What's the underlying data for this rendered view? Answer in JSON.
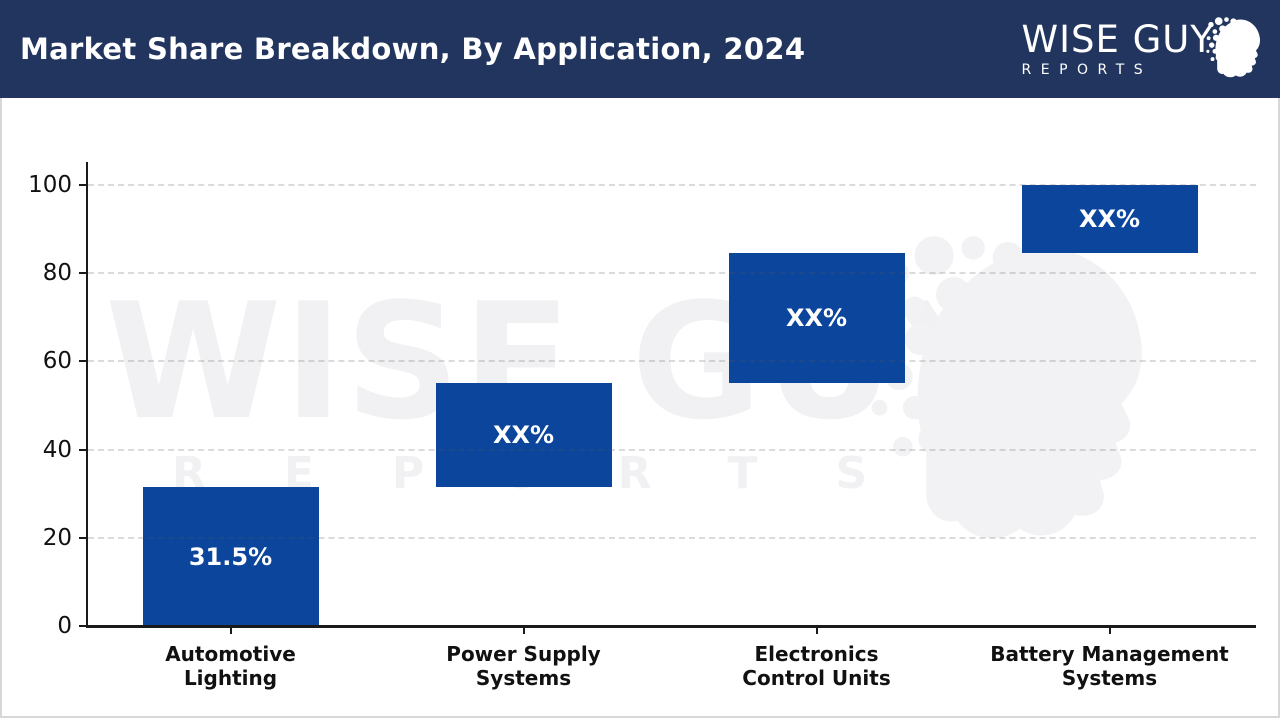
{
  "header": {
    "title": "Market Share Breakdown, By Application, 2024",
    "logo": {
      "name": "WISE GUY",
      "subtitle": "REPORTS"
    }
  },
  "watermark": {
    "name": "WISE GUY",
    "subtitle": "REPORTS"
  },
  "chart_data": {
    "type": "bar",
    "subtype": "waterfall",
    "title": "Market Share Breakdown, By Application, 2024",
    "categories": [
      "Automotive Lighting",
      "Power Supply Systems",
      "Electronics Control Units",
      "Battery Management Systems"
    ],
    "category_label_lines": [
      [
        "Automotive",
        "Lighting"
      ],
      [
        "Power Supply",
        "Systems"
      ],
      [
        "Electronics",
        "Control Units"
      ],
      [
        "Battery Management",
        "Systems"
      ]
    ],
    "bars": [
      {
        "category": "Automotive Lighting",
        "start": 0,
        "end": 31.5,
        "value": 31.5,
        "label": "31.5%"
      },
      {
        "category": "Power Supply Systems",
        "start": 31.5,
        "end": 55,
        "value": 23.5,
        "label": "XX%"
      },
      {
        "category": "Electronics Control Units",
        "start": 55,
        "end": 84.5,
        "value": 29.5,
        "label": "XX%"
      },
      {
        "category": "Battery Management Systems",
        "start": 84.5,
        "end": 100,
        "value": 15.5,
        "label": "XX%"
      }
    ],
    "xlabel": "",
    "ylabel": "",
    "ylim": [
      0,
      100
    ],
    "yticks": [
      0,
      20,
      40,
      60,
      80,
      100
    ],
    "ytick_labels": [
      "0",
      "20",
      "40",
      "60",
      "80",
      "100"
    ],
    "grid": "horizontal-dashed",
    "legend": "none",
    "bar_color": "#0b459c",
    "bar_label_color": "#ffffff",
    "header_color": "#22355e",
    "watermark_color": "#f1f1f4",
    "axis_color": "#1a1a1a"
  }
}
